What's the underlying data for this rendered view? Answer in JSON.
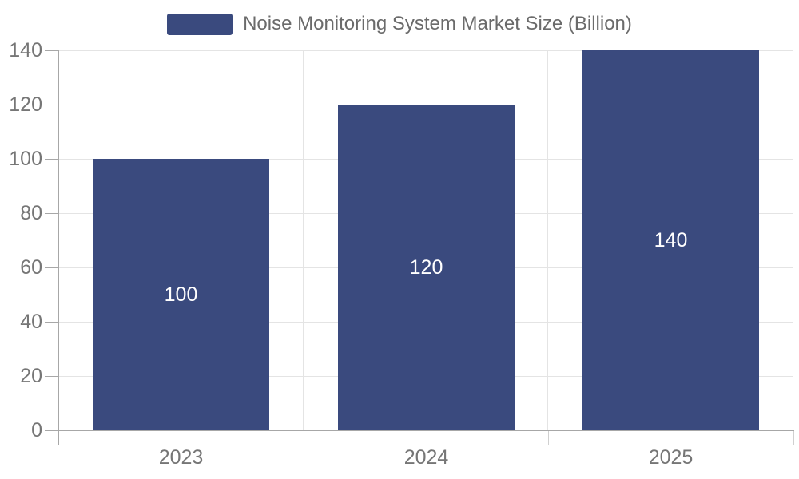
{
  "chart_data": {
    "type": "bar",
    "categories": [
      "2023",
      "2024",
      "2025"
    ],
    "values": [
      100,
      120,
      140
    ],
    "title": "Noise Monitoring System Market Size (Billion)",
    "xlabel": "",
    "ylabel": "",
    "ylim": [
      0,
      140
    ],
    "yticks": [
      0,
      20,
      40,
      60,
      80,
      100,
      120,
      140
    ],
    "grid": true,
    "legend": {
      "position": "top",
      "label": "Noise Monitoring System Market Size (Billion)"
    },
    "bar_value_labels": [
      "100",
      "120",
      "140"
    ]
  },
  "colors": {
    "bar_fill": "#3A4A7E",
    "bar_value_text": "#FFFFFF",
    "legend_swatch": "#3A4A7E",
    "legend_text": "#6B6B6B",
    "axis_line": "#A7A7A7",
    "y_tick": "#A7A7A7",
    "x_tick": "#D0D0D0",
    "gridline": "#E4E4E4",
    "tick_label_text": "#767676",
    "background": "#FFFFFF"
  }
}
